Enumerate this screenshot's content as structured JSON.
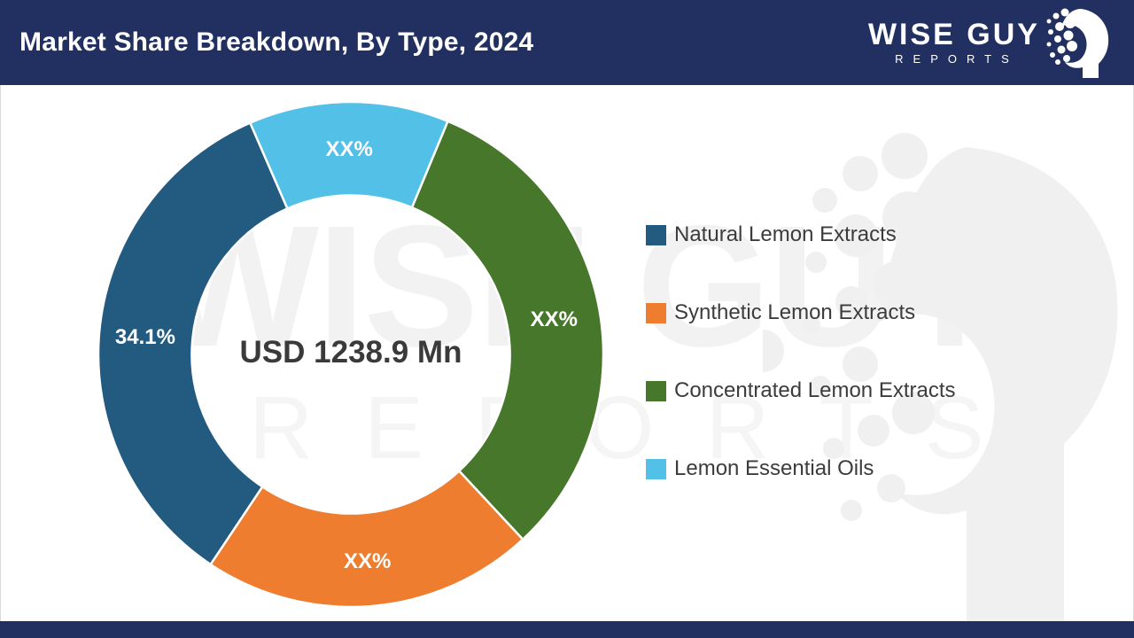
{
  "header": {
    "title": "Market Share Breakdown, By Type, 2024",
    "bg_color": "#213060",
    "logo": {
      "line1": "WISE GUY",
      "line2": "REPORTS"
    }
  },
  "watermark": {
    "line1": "WISE GUY",
    "line2": "REPORTS"
  },
  "chart_data": {
    "type": "donut",
    "title": "Market Share Breakdown, By Type, 2024",
    "center_label": "USD 1238.9 Mn",
    "start_angle_deg": 113.5,
    "direction": "counterclockwise",
    "outer_radius_px": 285,
    "inner_radius_ratio": 0.63,
    "legend_position": "right",
    "segments": [
      {
        "label": "Natural Lemon Extracts",
        "value_pct": 34.1,
        "display": "34.1%",
        "color": "#235b80"
      },
      {
        "label": "Synthetic Lemon Extracts",
        "value_pct": 21.3,
        "display": "XX%",
        "color": "#ee7d30"
      },
      {
        "label": "Concentrated Lemon Extracts",
        "value_pct": 31.8,
        "display": "XX%",
        "color": "#47772b"
      },
      {
        "label": "Lemon Essential Oils",
        "value_pct": 12.8,
        "display": "XX%",
        "color": "#53c0e8"
      }
    ]
  }
}
